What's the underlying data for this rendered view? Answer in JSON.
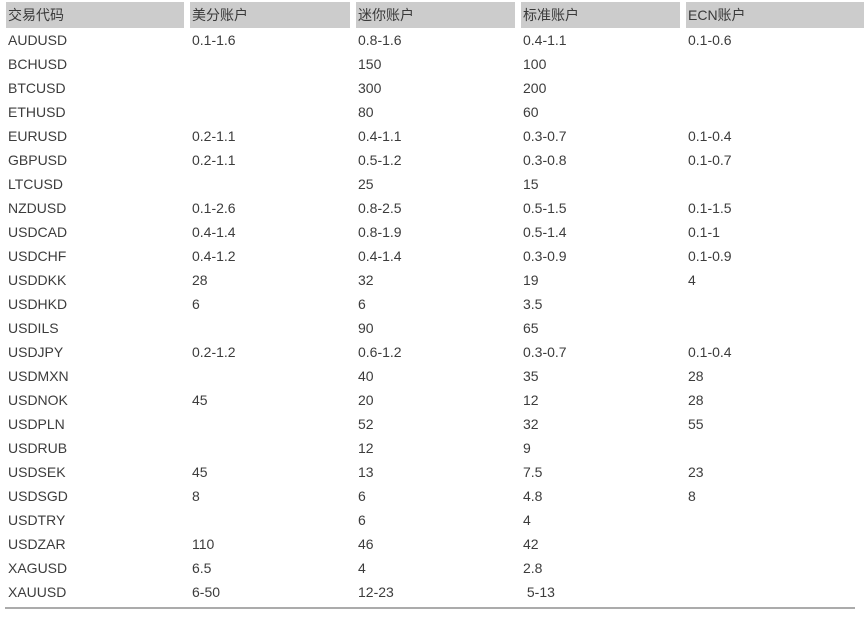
{
  "colors": {
    "header_background": "#cccccc",
    "text": "#3c3c3c",
    "bottom_rule": "#ababab",
    "page_background": "#ffffff"
  },
  "table": {
    "columns": [
      {
        "key": "symbol",
        "label": "交易代码"
      },
      {
        "key": "cent",
        "label": "美分账户"
      },
      {
        "key": "mini",
        "label": "迷你账户"
      },
      {
        "key": "standard",
        "label": "标准账户"
      },
      {
        "key": "ecn",
        "label": "ECN账户"
      }
    ],
    "rows": [
      {
        "cells": [
          "AUDUSD",
          "0.1-1.6",
          "0.8-1.6",
          "0.4-1.1",
          "0.1-0.6"
        ]
      },
      {
        "cells": [
          "BCHUSD",
          "",
          "150",
          "100",
          ""
        ]
      },
      {
        "cells": [
          "BTCUSD",
          "",
          "300",
          "200",
          ""
        ]
      },
      {
        "cells": [
          "ETHUSD",
          "",
          "80",
          "60",
          ""
        ]
      },
      {
        "cells": [
          "EURUSD",
          "0.2-1.1",
          "0.4-1.1",
          "0.3-0.7",
          "0.1-0.4"
        ]
      },
      {
        "cells": [
          "GBPUSD",
          "0.2-1.1",
          "0.5-1.2",
          "0.3-0.8",
          "0.1-0.7"
        ]
      },
      {
        "cells": [
          "LTCUSD",
          "",
          "25",
          "15",
          ""
        ]
      },
      {
        "cells": [
          "NZDUSD",
          "0.1-2.6",
          "0.8-2.5",
          "0.5-1.5",
          "0.1-1.5"
        ]
      },
      {
        "cells": [
          "USDCAD",
          "0.4-1.4",
          "0.8-1.9",
          "0.5-1.4",
          "0.1-1"
        ]
      },
      {
        "cells": [
          "USDCHF",
          "0.4-1.2",
          "0.4-1.4",
          "0.3-0.9",
          "0.1-0.9"
        ]
      },
      {
        "cells": [
          "USDDKK",
          "28",
          "32",
          "19",
          "4"
        ]
      },
      {
        "cells": [
          "USDHKD",
          "6",
          "6",
          "3.5",
          ""
        ]
      },
      {
        "cells": [
          "USDILS",
          "",
          "90",
          "65",
          ""
        ]
      },
      {
        "cells": [
          "USDJPY",
          "0.2-1.2",
          "0.6-1.2",
          "0.3-0.7",
          "0.1-0.4"
        ]
      },
      {
        "cells": [
          "USDMXN",
          "",
          "40",
          "35",
          "28"
        ]
      },
      {
        "cells": [
          "USDNOK",
          "45",
          "20",
          "12",
          "28"
        ]
      },
      {
        "cells": [
          "USDPLN",
          "",
          "52",
          "32",
          "55"
        ]
      },
      {
        "cells": [
          "USDRUB",
          "",
          "12",
          "9",
          ""
        ]
      },
      {
        "cells": [
          "USDSEK",
          "45",
          "13",
          "7.5",
          "23"
        ]
      },
      {
        "cells": [
          "USDSGD",
          "8",
          "6",
          "4.8",
          "8"
        ]
      },
      {
        "cells": [
          "USDTRY",
          "",
          "6",
          "4",
          ""
        ]
      },
      {
        "cells": [
          "USDZAR",
          "110",
          "46",
          "42",
          ""
        ]
      },
      {
        "cells": [
          "XAGUSD",
          "6.5",
          "4",
          "2.8",
          ""
        ]
      },
      {
        "cells": [
          "XAUUSD",
          "6-50",
          "12-23",
          " 5-13",
          ""
        ]
      }
    ]
  }
}
